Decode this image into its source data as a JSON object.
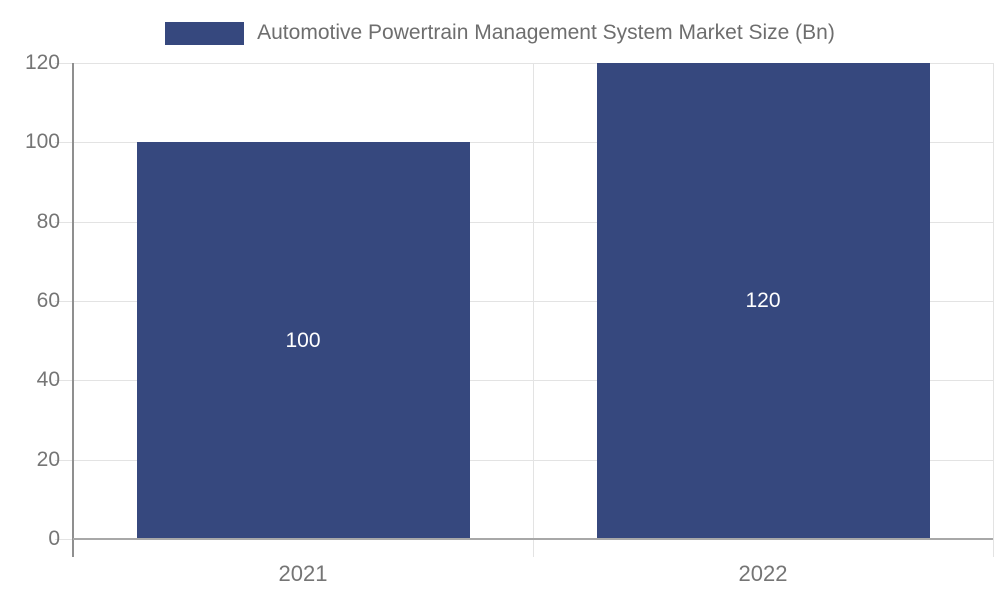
{
  "chart_data": {
    "type": "bar",
    "title": "",
    "categories": [
      "2021",
      "2022"
    ],
    "series": [
      {
        "name": "Automotive Powertrain Management System Market Size (Bn)",
        "values": [
          100,
          120
        ]
      }
    ],
    "value_labels": [
      "100",
      "120"
    ],
    "xlabel": "",
    "ylabel": "",
    "ylim": [
      0,
      120
    ],
    "yticks": [
      0,
      20,
      40,
      60,
      80,
      100,
      120
    ],
    "grid": true,
    "legend_position": "top-center",
    "colors": {
      "bar": "#36487e",
      "grid": "#e3e3e3",
      "axis": "#8f8f8f",
      "bottom_axis": "#a8a8a8",
      "tick_text": "#757575",
      "legend_text": "#6e6e6e",
      "value_label_text": "#ffffff",
      "background": "#ffffff"
    }
  }
}
